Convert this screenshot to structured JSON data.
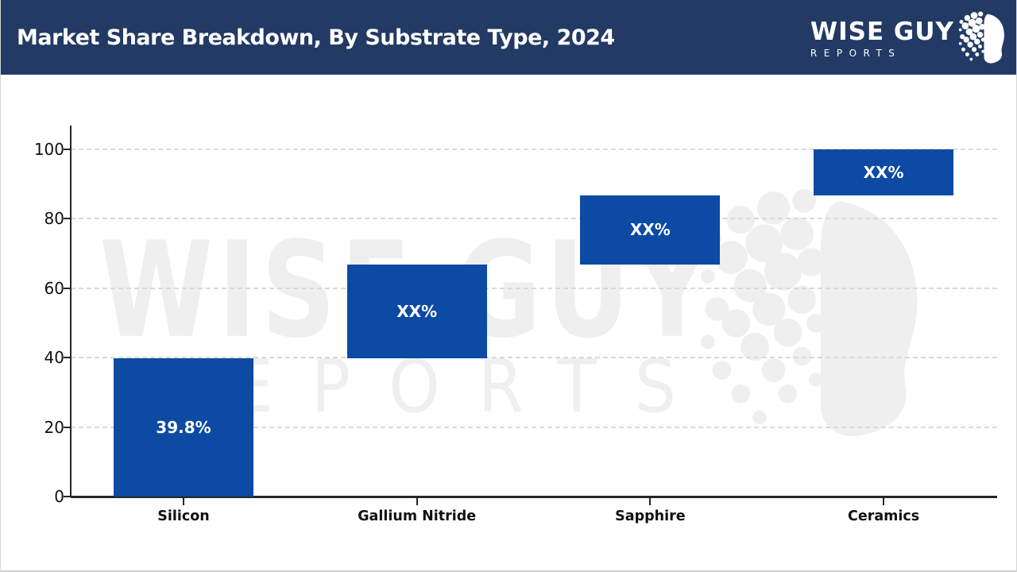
{
  "header": {
    "title": "Market Share Breakdown, By Substrate Type, 2024",
    "brand": {
      "line1": "WISE GUY",
      "line2": "REPORTS"
    }
  },
  "watermark": {
    "line1": "WISE GUY",
    "line2": "REPORTS"
  },
  "chart_data": {
    "type": "bar",
    "subtype": "waterfall-floating-bars",
    "title": "Market Share Breakdown, By Substrate Type, 2024",
    "categories": [
      "Silicon",
      "Gallium Nitride",
      "Sapphire",
      "Ceramics"
    ],
    "bars": [
      {
        "category": "Silicon",
        "start": 0,
        "end": 39.8,
        "label": "39.8%"
      },
      {
        "category": "Gallium Nitride",
        "start": 39.8,
        "end": 66.8,
        "label": "XX%"
      },
      {
        "category": "Sapphire",
        "start": 66.8,
        "end": 86.8,
        "label": "XX%"
      },
      {
        "category": "Ceramics",
        "start": 86.8,
        "end": 100,
        "label": "XX%"
      }
    ],
    "xlabel": "",
    "ylabel": "",
    "yticks": [
      0,
      20,
      40,
      60,
      80,
      100
    ],
    "ylim": [
      0,
      105
    ],
    "grid": "horizontal-dashed",
    "legend": false
  },
  "colors": {
    "header_bg": "#223a64",
    "bar": "#0c4aa4",
    "bar_label": "#ffffff",
    "watermark": "#efefef",
    "grid": "#d9d9d9",
    "axis": "#262626",
    "tick_label": "#111111",
    "title_text": "#ffffff"
  }
}
